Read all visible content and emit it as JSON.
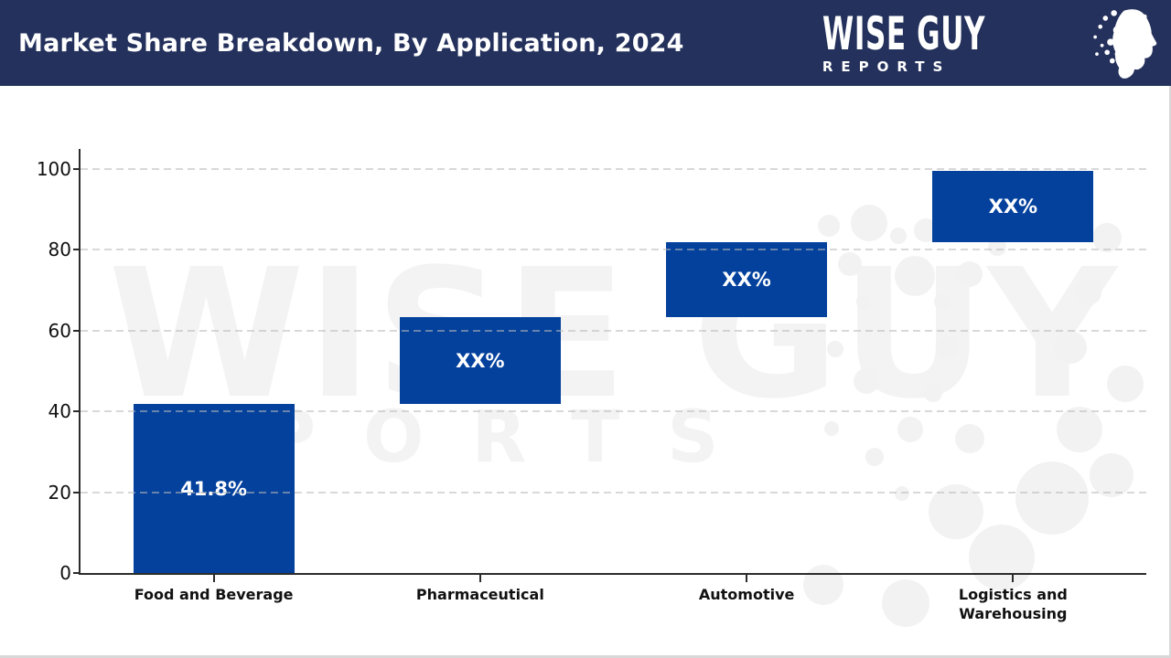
{
  "header": {
    "title": "Market Share Breakdown, By Application, 2024",
    "logo": {
      "line1": "WISE GUY",
      "line2": "REPORTS"
    }
  },
  "watermark": {
    "line1": "WISE GUY",
    "line2": "PORTS"
  },
  "colors": {
    "header_bg": "#24315c",
    "bar": "#04419d",
    "bar_label_text": "#ffffff",
    "grid": "#dcdcdc",
    "watermark": "#f3f3f3",
    "axis_text": "#111111"
  },
  "chart_data": {
    "type": "bar",
    "subtype": "waterfall",
    "title": "Market Share Breakdown, By Application, 2024",
    "xlabel": "",
    "ylabel": "",
    "categories": [
      "Food and Beverage",
      "Pharmaceutical",
      "Automotive",
      "Logistics and Warehousing"
    ],
    "segments": [
      {
        "category": "Food and Beverage",
        "start": 0,
        "end": 41.8,
        "label": "41.8%"
      },
      {
        "category": "Pharmaceutical",
        "start": 41.8,
        "end": 63.4,
        "label": "XX%"
      },
      {
        "category": "Automotive",
        "start": 63.4,
        "end": 82.0,
        "label": "XX%"
      },
      {
        "category": "Logistics and Warehousing",
        "start": 82.0,
        "end": 99.5,
        "label": "XX%"
      }
    ],
    "yticks": [
      0,
      20,
      40,
      60,
      80,
      100
    ],
    "ylim": [
      0,
      100
    ],
    "grid": "horizontal-dashed",
    "legend": "none"
  }
}
